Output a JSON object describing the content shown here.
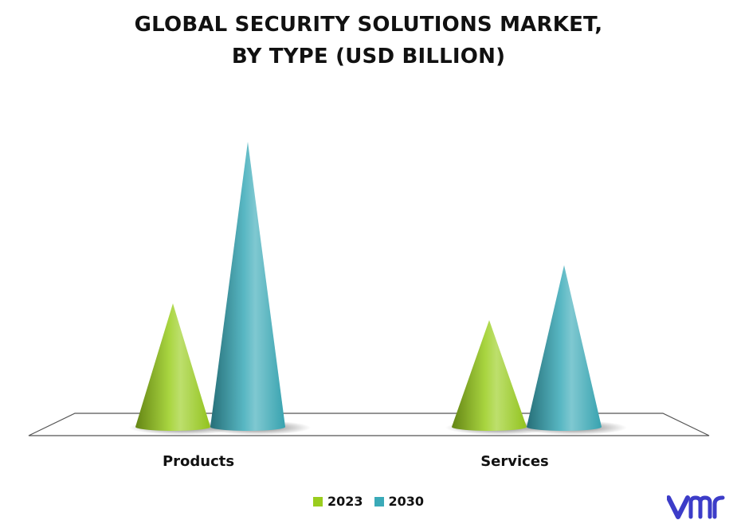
{
  "chart_data": {
    "type": "bar",
    "title_line1": "GLOBAL SECURITY SOLUTIONS MARKET,",
    "title_line2": "BY TYPE (USD BILLION)",
    "categories": [
      "Products",
      "Services"
    ],
    "series": [
      {
        "name": "2023",
        "values": [
          155,
          134
        ],
        "color": "#9acd1e"
      },
      {
        "name": "2030",
        "values": [
          358,
          203
        ],
        "color": "#3aaab8"
      }
    ],
    "xlabel": "",
    "ylabel": "",
    "ylim": [
      0,
      360
    ],
    "grid": false,
    "legend": "bottom",
    "shape": "cone"
  },
  "logo": {
    "name": "vmr-logo",
    "color": "#3c3cc8"
  }
}
